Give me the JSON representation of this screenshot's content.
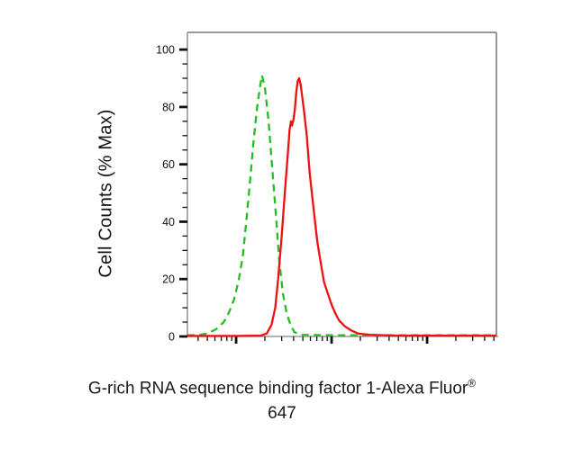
{
  "figure": {
    "y_axis_title": "Cell Counts (% Max)",
    "caption_line1": "G-rich RNA sequence binding factor 1-Alexa Fluor",
    "caption_registered_mark": "®",
    "caption_line2": "647"
  },
  "colors": {
    "frame_gray": "#989898",
    "tick_black": "#111111",
    "green_dashed_series": "#22bf22",
    "red_solid_series": "#ee1111",
    "background": "#ffffff"
  },
  "chart_data": {
    "type": "line",
    "subtype": "flow-cytometry-histogram-overlay",
    "title": "",
    "xlabel": "G-rich RNA sequence binding factor 1-Alexa Fluor® 647",
    "ylabel": "Cell Counts (% Max)",
    "x_scale": "log10",
    "x_range_log10": [
      0.49,
      3.726
    ],
    "x_major_ticks_log10": [
      1,
      2,
      3
    ],
    "x_tick_labels_shown": false,
    "ylim": [
      0,
      106
    ],
    "y_major_ticks": [
      0,
      20,
      40,
      60,
      80,
      100
    ],
    "y_minor_step": 5,
    "grid": false,
    "legend": null,
    "series": [
      {
        "name": "green-dashed",
        "style": "dashed",
        "color": "#22bf22",
        "peak": {
          "x_log10": 1.27,
          "y_pct": 91
        },
        "points": [
          [
            0.49,
            0.4
          ],
          [
            0.6,
            0.5
          ],
          [
            0.7,
            1
          ],
          [
            0.79,
            2.5
          ],
          [
            0.87,
            5
          ],
          [
            0.92,
            8
          ],
          [
            0.98,
            13
          ],
          [
            1.03,
            20
          ],
          [
            1.07,
            28
          ],
          [
            1.1,
            38
          ],
          [
            1.14,
            52
          ],
          [
            1.18,
            67
          ],
          [
            1.22,
            80
          ],
          [
            1.25,
            87
          ],
          [
            1.27,
            91
          ],
          [
            1.3,
            87
          ],
          [
            1.34,
            75
          ],
          [
            1.38,
            58
          ],
          [
            1.42,
            41
          ],
          [
            1.45,
            27
          ],
          [
            1.49,
            15
          ],
          [
            1.53,
            8
          ],
          [
            1.57,
            4
          ],
          [
            1.61,
            1.5
          ],
          [
            1.69,
            0.6
          ],
          [
            2.0,
            0.4
          ],
          [
            2.5,
            0.4
          ],
          [
            3.0,
            0.4
          ],
          [
            3.5,
            0.4
          ],
          [
            3.726,
            0.4
          ]
        ]
      },
      {
        "name": "red-solid",
        "style": "solid",
        "color": "#ee1111",
        "peak": {
          "x_log10": 1.66,
          "y_pct": 90
        },
        "shoulder": {
          "x_log10": 1.575,
          "y_pct": 75
        },
        "points": [
          [
            0.49,
            0.2
          ],
          [
            1.0,
            0.2
          ],
          [
            1.26,
            0.3
          ],
          [
            1.32,
            1
          ],
          [
            1.37,
            4
          ],
          [
            1.41,
            10
          ],
          [
            1.44,
            20
          ],
          [
            1.48,
            36
          ],
          [
            1.51,
            50
          ],
          [
            1.54,
            63
          ],
          [
            1.56,
            72
          ],
          [
            1.575,
            75
          ],
          [
            1.585,
            73.5
          ],
          [
            1.6,
            75.5
          ],
          [
            1.615,
            79
          ],
          [
            1.63,
            85
          ],
          [
            1.645,
            89
          ],
          [
            1.66,
            90
          ],
          [
            1.675,
            88
          ],
          [
            1.71,
            79
          ],
          [
            1.74,
            70
          ],
          [
            1.77,
            57
          ],
          [
            1.81,
            45
          ],
          [
            1.85,
            33
          ],
          [
            1.89,
            25
          ],
          [
            1.92,
            19
          ],
          [
            1.96,
            15
          ],
          [
            2.0,
            11
          ],
          [
            2.04,
            8
          ],
          [
            2.08,
            5.5
          ],
          [
            2.14,
            3.5
          ],
          [
            2.21,
            2
          ],
          [
            2.28,
            1
          ],
          [
            2.4,
            0.6
          ],
          [
            2.68,
            0.3
          ],
          [
            3.0,
            0.3
          ],
          [
            3.4,
            0.3
          ],
          [
            3.726,
            0.3
          ]
        ]
      }
    ]
  }
}
